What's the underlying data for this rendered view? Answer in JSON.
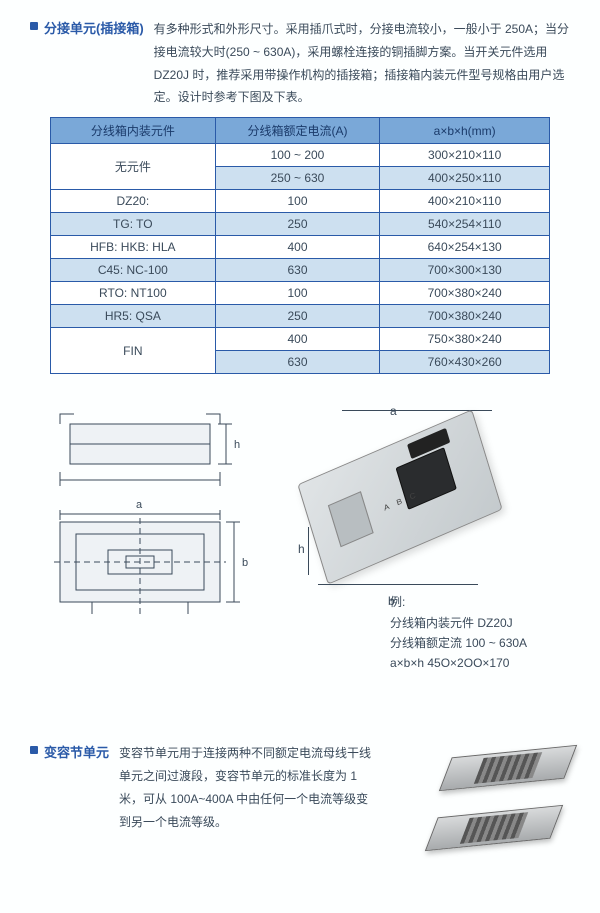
{
  "section1": {
    "title": "分接单元(插接箱)",
    "desc": "有多种形式和外形尺寸。采用插爪式时，分接电流较小，一般小于 250A；当分接电流较大时(250 ~ 630A)，采用螺栓连接的铜插脚方案。当开关元件选用 DZ20J 时，推荐采用带操作机构的插接箱；插接箱内装元件型号规格由用户选定。设计时参考下图及下表。"
  },
  "table": {
    "headers": [
      "分线箱内装元件",
      "分线箱额定电流(A)",
      "a×b×h(mm)"
    ],
    "rows": [
      {
        "component": "无元件",
        "current": "100 ~ 200",
        "dim": "300×210×110",
        "band": false,
        "rowspan": 2
      },
      {
        "component": "",
        "current": "250 ~ 630",
        "dim": "400×250×110",
        "band": true,
        "rowspan": 0
      },
      {
        "component": "DZ20:",
        "current": "100",
        "dim": "400×210×110",
        "band": false,
        "rowspan": 1
      },
      {
        "component": "TG: TO",
        "current": "250",
        "dim": "540×254×110",
        "band": true,
        "rowspan": 1
      },
      {
        "component": "HFB: HKB: HLA",
        "current": "400",
        "dim": "640×254×130",
        "band": false,
        "rowspan": 1
      },
      {
        "component": "C45: NC-100",
        "current": "630",
        "dim": "700×300×130",
        "band": true,
        "rowspan": 1
      },
      {
        "component": "RTO: NT100",
        "current": "100",
        "dim": "700×380×240",
        "band": false,
        "rowspan": 1
      },
      {
        "component": "HR5: QSA",
        "current": "250",
        "dim": "700×380×240",
        "band": true,
        "rowspan": 1
      },
      {
        "component": "",
        "current": "400",
        "dim": "750×380×240",
        "band": false,
        "rowspan": 0,
        "continue": true
      },
      {
        "component": "FIN",
        "current": "630",
        "dim": "760×430×260",
        "band": true,
        "rowspan": 2,
        "groupwith": 8
      }
    ]
  },
  "diagram": {
    "labels": {
      "a": "a",
      "b": "b",
      "h": "h"
    }
  },
  "photo": {
    "labels": {
      "a": "a",
      "b": "b",
      "h": "h"
    },
    "letters": "A B C"
  },
  "example": {
    "head": "例:",
    "l1": "分线箱内装元件 DZ20J",
    "l2": "分线箱额定流 100 ~ 630A",
    "l3": "a×b×h   45O×2OO×170"
  },
  "section2": {
    "title": "变容节单元",
    "desc": "变容节单元用于连接两种不同额定电流母线干线单元之间过渡段，变容节单元的标准长度为 1 米，可从 100A~400A 中由任何一个电流等级变到另一个电流等级。"
  },
  "colors": {
    "accent": "#2a5aa8",
    "band": "#cde0f0",
    "header": "#7aa8d8",
    "text": "#3a4a5a",
    "bg": "#fdffff"
  }
}
